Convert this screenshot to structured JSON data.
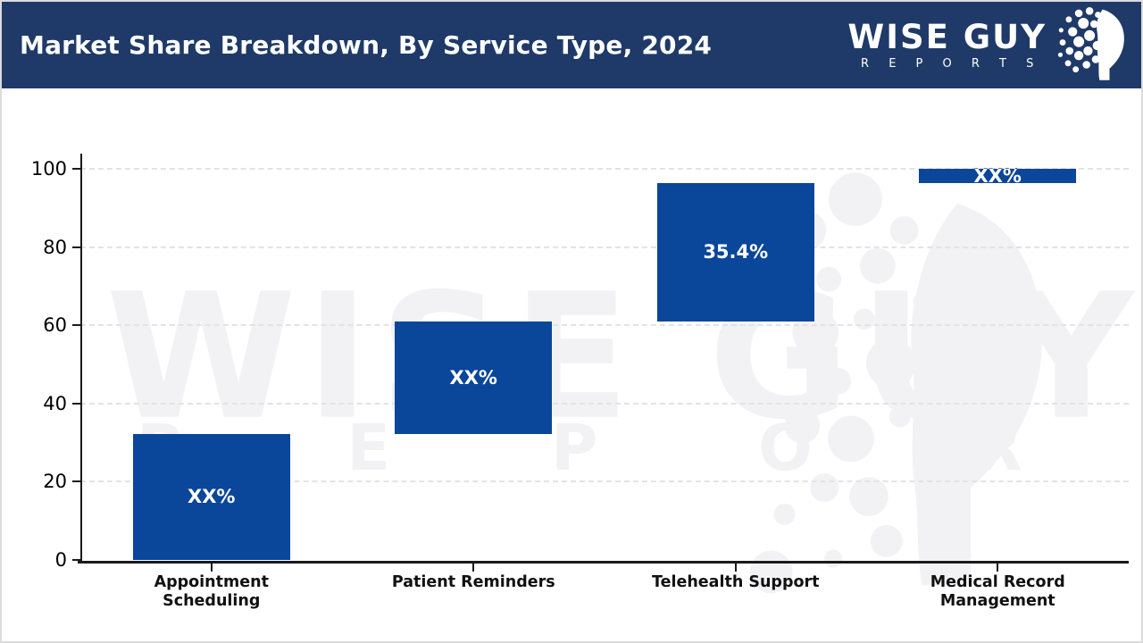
{
  "header": {
    "title": "Market Share Breakdown, By Service Type, 2024",
    "logo": {
      "line1": "WISE GUY",
      "line2": "R E P O R T S"
    }
  },
  "watermark": {
    "line1": "WISE GUY",
    "line2": "R E P O R T S"
  },
  "colors": {
    "header_bg": "#1f3a68",
    "bar": "#0a4699",
    "bar_label": "#ffffff",
    "axis": "#1a1a1a",
    "gridline": "#e3e3e5",
    "watermark": "#f2f2f4"
  },
  "chart_data": {
    "type": "bar",
    "subtype": "waterfall",
    "title": "Market Share Breakdown, By Service Type, 2024",
    "xlabel": "",
    "ylabel": "",
    "categories": [
      "Appointment Scheduling",
      "Patient Reminders",
      "Telehealth Support",
      "Medical Record Management"
    ],
    "segments": [
      {
        "category": "Appointment Scheduling",
        "start": 0,
        "end": 32.2,
        "label": "XX%"
      },
      {
        "category": "Patient Reminders",
        "start": 32.2,
        "end": 61.0,
        "label": "XX%"
      },
      {
        "category": "Telehealth Support",
        "start": 61.0,
        "end": 96.4,
        "label": "35.4%"
      },
      {
        "category": "Medical Record Management",
        "start": 96.4,
        "end": 100,
        "label": "XX%"
      }
    ],
    "yticks": [
      0,
      20,
      40,
      60,
      80,
      100
    ],
    "ylim": [
      0,
      104
    ],
    "grid": "horizontal-dashed",
    "legend": "none",
    "bar_color": "#0a4699",
    "label_color": "#ffffff"
  }
}
